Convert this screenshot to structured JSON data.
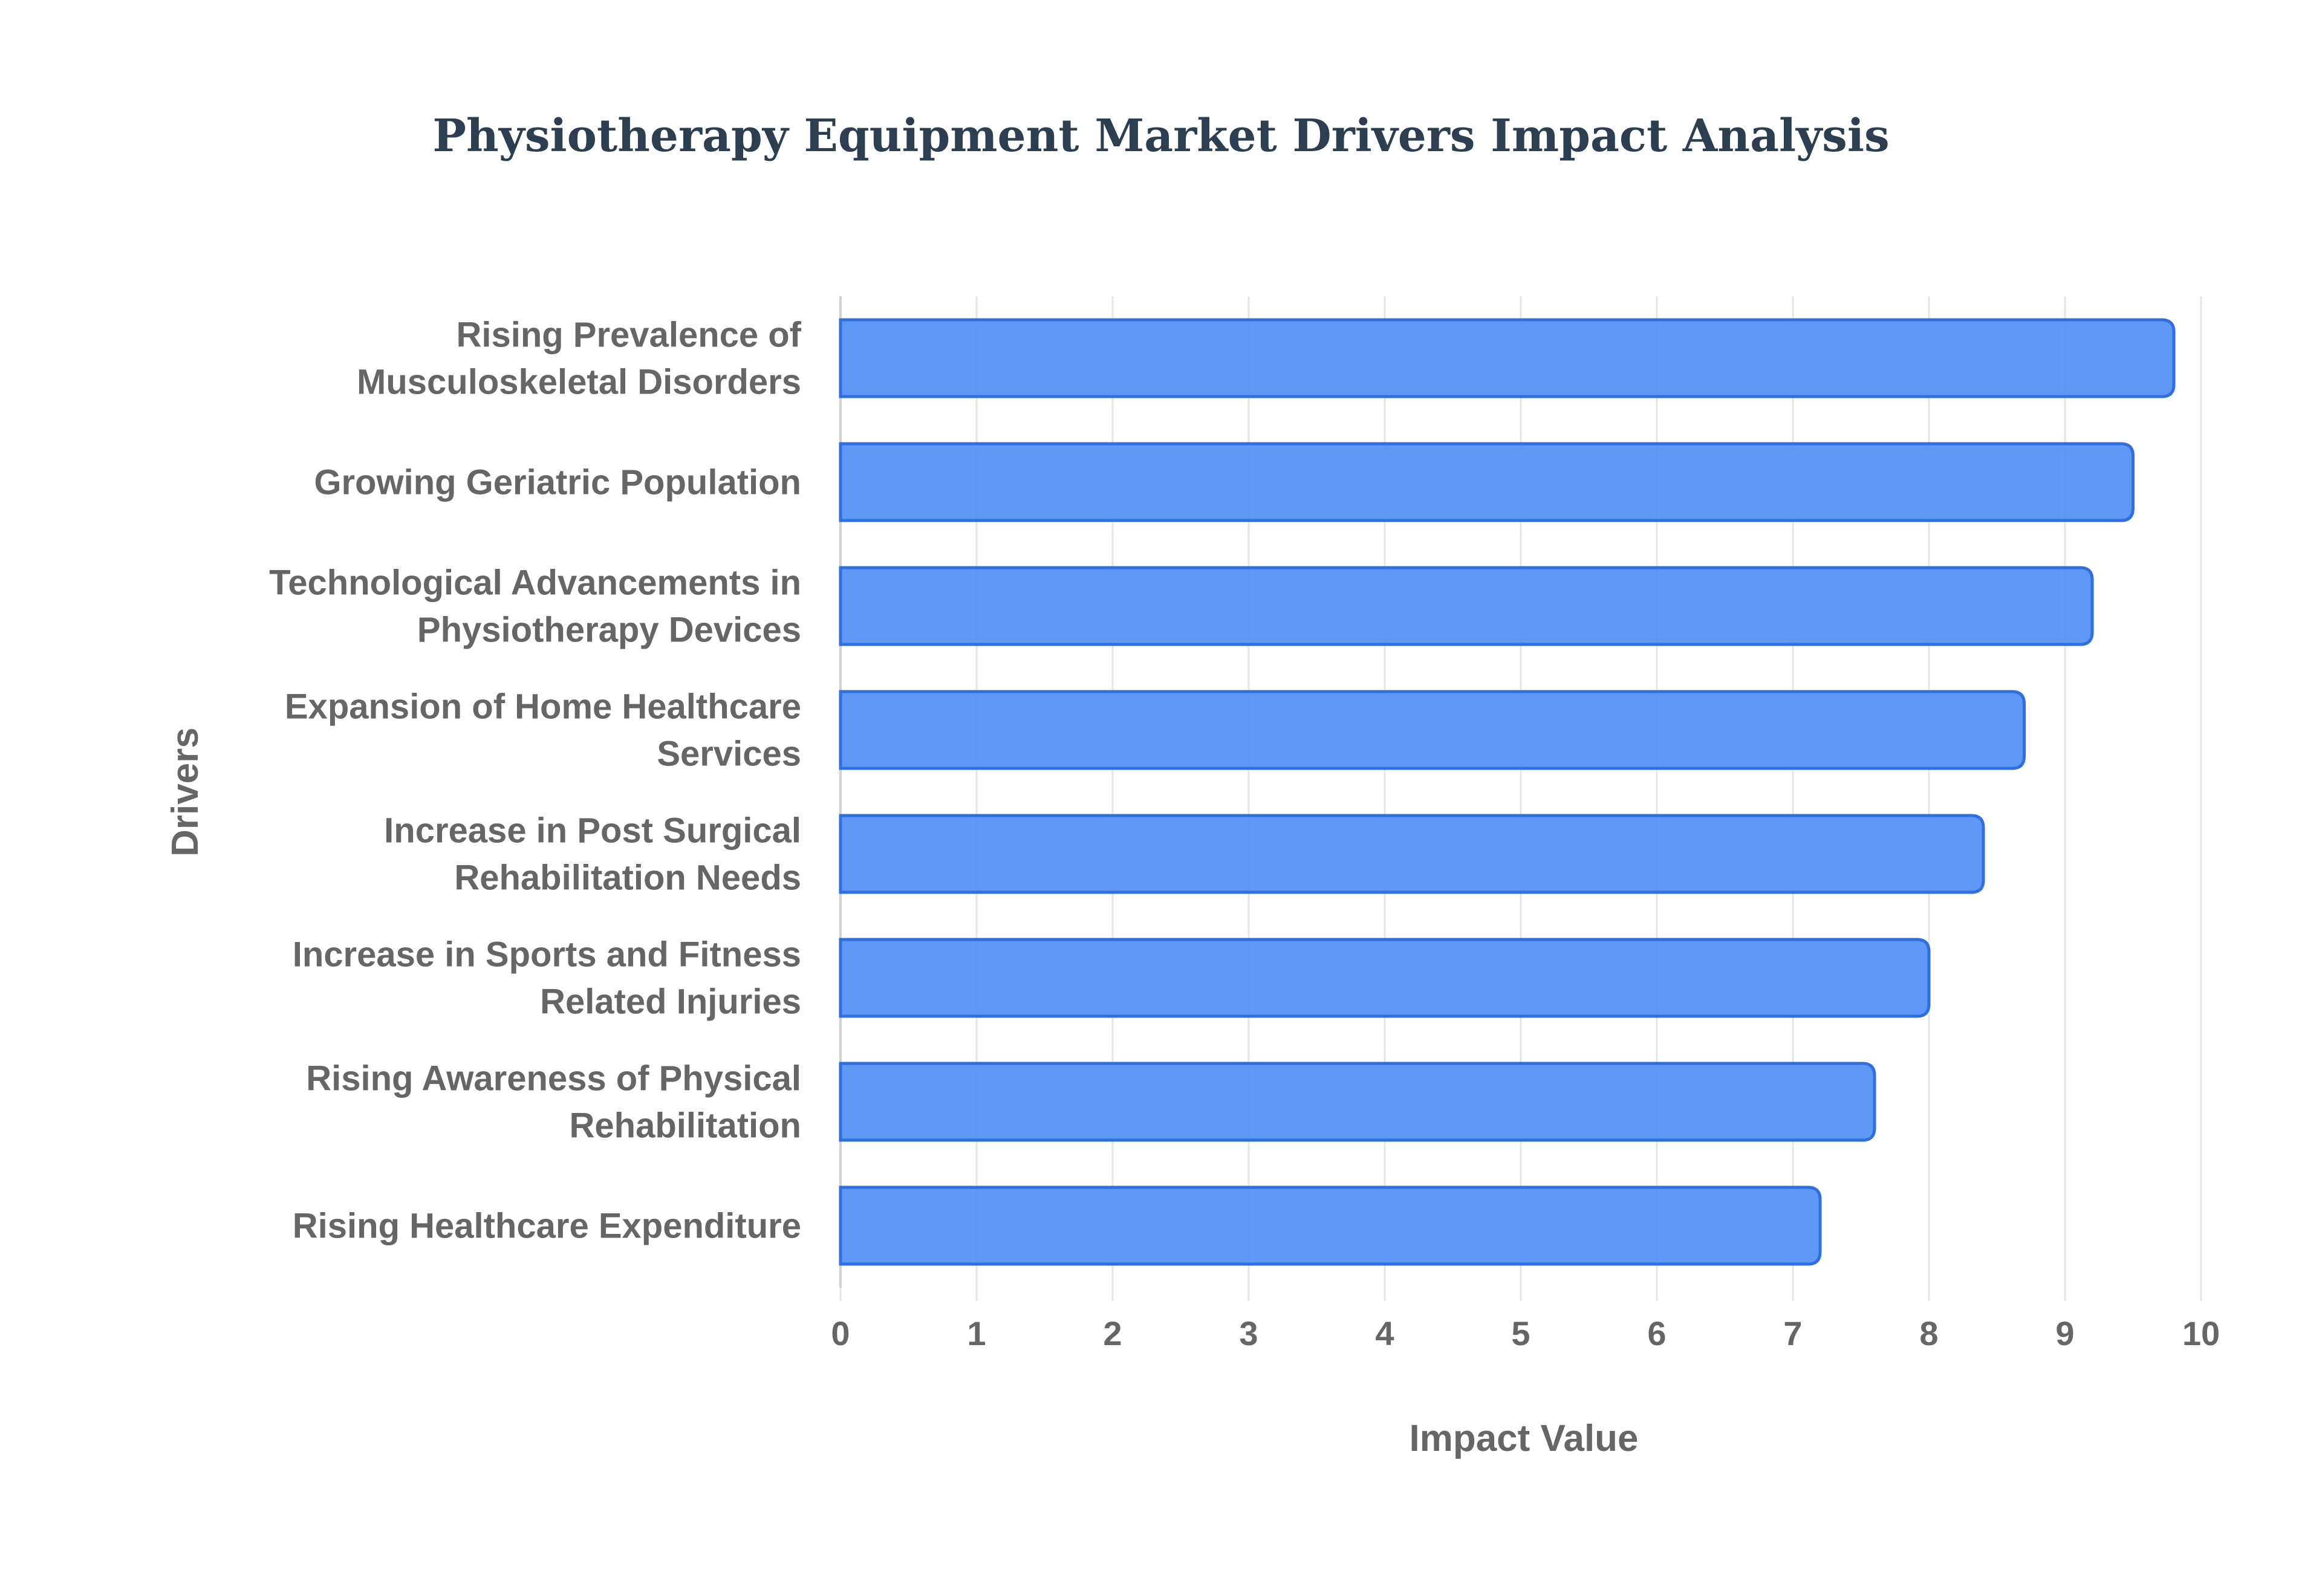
{
  "chart_data": {
    "type": "bar",
    "orientation": "horizontal",
    "title": "Physiotherapy Equipment Market Drivers Impact Analysis",
    "xlabel": "Impact Value",
    "ylabel": "Drivers",
    "xlim": [
      0,
      10
    ],
    "x_ticks": [
      "0",
      "1",
      "2",
      "3",
      "4",
      "5",
      "6",
      "7",
      "8",
      "9",
      "10"
    ],
    "grid": true,
    "categories": [
      [
        "Rising Prevalence of",
        "Musculoskeletal Disorders"
      ],
      [
        "Growing Geriatric Population"
      ],
      [
        "Technological Advancements in",
        "Physiotherapy Devices"
      ],
      [
        "Expansion of Home Healthcare",
        "Services"
      ],
      [
        "Increase in Post Surgical",
        "Rehabilitation Needs"
      ],
      [
        "Increase in Sports and Fitness",
        "Related Injuries"
      ],
      [
        "Rising Awareness of Physical",
        "Rehabilitation"
      ],
      [
        "Rising Healthcare Expenditure"
      ]
    ],
    "values": [
      9.8,
      9.5,
      9.2,
      8.7,
      8.4,
      8.0,
      7.6,
      7.2
    ],
    "colors": {
      "bar_fill": "#4e8cf4",
      "bar_stroke": "#2f6fe0",
      "grid": "#e6e6e6",
      "text": "#666666",
      "title": "#2c3e50"
    }
  }
}
